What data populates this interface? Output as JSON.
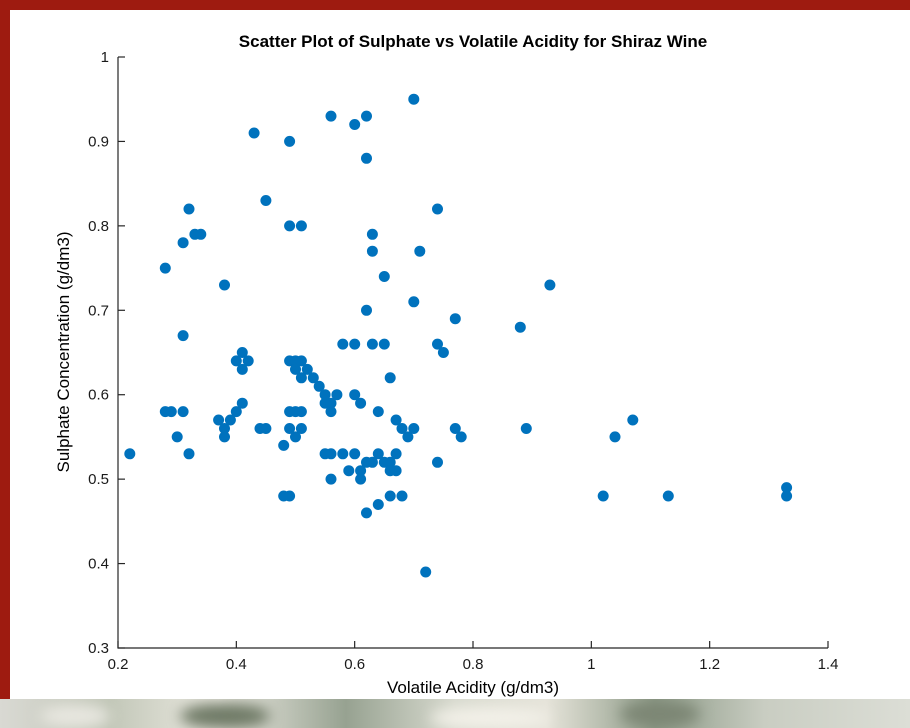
{
  "window": {
    "frame_color": "#9e1b10",
    "figure_background": "#ffffff"
  },
  "chart_data": {
    "type": "scatter",
    "title": "Scatter Plot of Sulphate vs Volatile Acidity for Shiraz Wine",
    "xlabel": "Volatile Acidity (g/dm3)",
    "ylabel": "Sulphate Concentration (g/dm3)",
    "xlim": [
      0.2,
      1.4
    ],
    "ylim": [
      0.3,
      1.0
    ],
    "xticks": [
      0.2,
      0.4,
      0.6,
      0.8,
      1.0,
      1.2,
      1.4
    ],
    "xtick_labels": [
      "0.2",
      "0.4",
      "0.6",
      "0.8",
      "1",
      "1.2",
      "1.4"
    ],
    "yticks": [
      0.3,
      0.4,
      0.5,
      0.6,
      0.7,
      0.8,
      0.9,
      1.0
    ],
    "ytick_labels": [
      "0.3",
      "0.4",
      "0.5",
      "0.6",
      "0.7",
      "0.8",
      "0.9",
      "1"
    ],
    "grid": false,
    "legend": null,
    "marker_style": "filled-circle",
    "marker_color": "#0072BD",
    "axis_color": "#262626",
    "points": [
      [
        0.7,
        0.95
      ],
      [
        0.56,
        0.93
      ],
      [
        0.62,
        0.93
      ],
      [
        0.6,
        0.92
      ],
      [
        0.43,
        0.91
      ],
      [
        0.49,
        0.9
      ],
      [
        0.62,
        0.88
      ],
      [
        0.45,
        0.83
      ],
      [
        0.32,
        0.82
      ],
      [
        0.74,
        0.82
      ],
      [
        0.49,
        0.8
      ],
      [
        0.51,
        0.8
      ],
      [
        0.33,
        0.79
      ],
      [
        0.34,
        0.79
      ],
      [
        0.31,
        0.78
      ],
      [
        0.63,
        0.79
      ],
      [
        0.63,
        0.77
      ],
      [
        0.71,
        0.77
      ],
      [
        0.28,
        0.75
      ],
      [
        0.65,
        0.74
      ],
      [
        0.38,
        0.73
      ],
      [
        0.93,
        0.73
      ],
      [
        0.7,
        0.71
      ],
      [
        0.62,
        0.7
      ],
      [
        0.77,
        0.69
      ],
      [
        0.88,
        0.68
      ],
      [
        0.31,
        0.67
      ],
      [
        0.74,
        0.66
      ],
      [
        0.75,
        0.65
      ],
      [
        0.58,
        0.66
      ],
      [
        0.6,
        0.66
      ],
      [
        0.63,
        0.66
      ],
      [
        0.65,
        0.66
      ],
      [
        0.41,
        0.65
      ],
      [
        0.4,
        0.64
      ],
      [
        0.42,
        0.64
      ],
      [
        0.41,
        0.63
      ],
      [
        0.49,
        0.64
      ],
      [
        0.5,
        0.64
      ],
      [
        0.51,
        0.64
      ],
      [
        0.5,
        0.63
      ],
      [
        0.52,
        0.63
      ],
      [
        0.53,
        0.62
      ],
      [
        0.51,
        0.62
      ],
      [
        0.66,
        0.62
      ],
      [
        0.54,
        0.61
      ],
      [
        0.55,
        0.6
      ],
      [
        0.57,
        0.6
      ],
      [
        0.6,
        0.6
      ],
      [
        0.55,
        0.59
      ],
      [
        0.56,
        0.59
      ],
      [
        0.61,
        0.59
      ],
      [
        0.56,
        0.58
      ],
      [
        0.28,
        0.58
      ],
      [
        0.29,
        0.58
      ],
      [
        0.31,
        0.58
      ],
      [
        0.4,
        0.58
      ],
      [
        0.41,
        0.59
      ],
      [
        0.49,
        0.58
      ],
      [
        0.5,
        0.58
      ],
      [
        0.51,
        0.58
      ],
      [
        0.64,
        0.58
      ],
      [
        0.67,
        0.57
      ],
      [
        0.37,
        0.57
      ],
      [
        0.38,
        0.56
      ],
      [
        0.39,
        0.57
      ],
      [
        0.38,
        0.55
      ],
      [
        0.44,
        0.56
      ],
      [
        0.45,
        0.56
      ],
      [
        0.49,
        0.56
      ],
      [
        0.5,
        0.55
      ],
      [
        0.51,
        0.56
      ],
      [
        0.68,
        0.56
      ],
      [
        0.69,
        0.55
      ],
      [
        0.7,
        0.56
      ],
      [
        0.77,
        0.56
      ],
      [
        0.78,
        0.55
      ],
      [
        0.89,
        0.56
      ],
      [
        1.04,
        0.55
      ],
      [
        1.07,
        0.57
      ],
      [
        0.22,
        0.53
      ],
      [
        0.3,
        0.55
      ],
      [
        0.32,
        0.53
      ],
      [
        0.48,
        0.54
      ],
      [
        0.55,
        0.53
      ],
      [
        0.56,
        0.53
      ],
      [
        0.58,
        0.53
      ],
      [
        0.6,
        0.53
      ],
      [
        0.62,
        0.52
      ],
      [
        0.63,
        0.52
      ],
      [
        0.64,
        0.53
      ],
      [
        0.65,
        0.52
      ],
      [
        0.66,
        0.52
      ],
      [
        0.67,
        0.53
      ],
      [
        0.66,
        0.51
      ],
      [
        0.67,
        0.51
      ],
      [
        0.74,
        0.52
      ],
      [
        0.59,
        0.51
      ],
      [
        0.61,
        0.51
      ],
      [
        0.56,
        0.5
      ],
      [
        0.61,
        0.5
      ],
      [
        0.48,
        0.48
      ],
      [
        0.49,
        0.48
      ],
      [
        0.64,
        0.47
      ],
      [
        0.66,
        0.48
      ],
      [
        0.68,
        0.48
      ],
      [
        0.62,
        0.46
      ],
      [
        1.02,
        0.48
      ],
      [
        1.13,
        0.48
      ],
      [
        1.33,
        0.49
      ],
      [
        1.33,
        0.48
      ],
      [
        0.72,
        0.39
      ]
    ]
  }
}
